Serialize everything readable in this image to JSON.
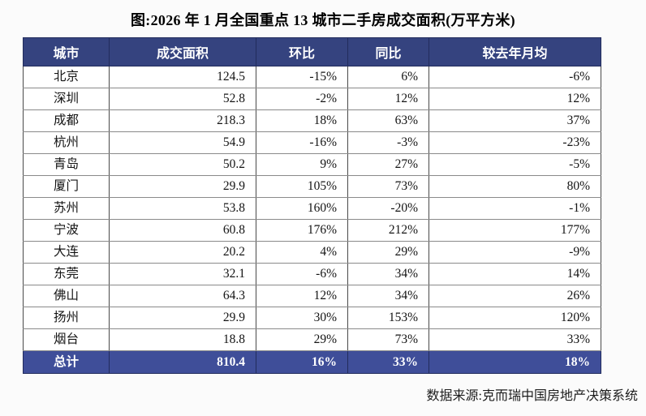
{
  "title": "图:2026 年 1 月全国重点 13 城市二手房成交面积(万平方米)",
  "table": {
    "columns": [
      "城市",
      "成交面积",
      "环比",
      "同比",
      "较去年月均"
    ],
    "rows": [
      [
        "北京",
        "124.5",
        "-15%",
        "6%",
        "-6%"
      ],
      [
        "深圳",
        "52.8",
        "-2%",
        "12%",
        "12%"
      ],
      [
        "成都",
        "218.3",
        "18%",
        "63%",
        "37%"
      ],
      [
        "杭州",
        "54.9",
        "-16%",
        "-3%",
        "-23%"
      ],
      [
        "青岛",
        "50.2",
        "9%",
        "27%",
        "-5%"
      ],
      [
        "厦门",
        "29.9",
        "105%",
        "73%",
        "80%"
      ],
      [
        "苏州",
        "53.8",
        "160%",
        "-20%",
        "-1%"
      ],
      [
        "宁波",
        "60.8",
        "176%",
        "212%",
        "177%"
      ],
      [
        "大连",
        "20.2",
        "4%",
        "29%",
        "-9%"
      ],
      [
        "东莞",
        "32.1",
        "-6%",
        "34%",
        "14%"
      ],
      [
        "佛山",
        "64.3",
        "12%",
        "34%",
        "26%"
      ],
      [
        "扬州",
        "29.9",
        "30%",
        "153%",
        "120%"
      ],
      [
        "烟台",
        "18.8",
        "29%",
        "73%",
        "33%"
      ]
    ],
    "total": [
      "总计",
      "810.4",
      "16%",
      "33%",
      "18%"
    ]
  },
  "footer": {
    "source": "数据来源:克而瑞中国房地产决策系统"
  },
  "colors": {
    "header_bg": "#35437f",
    "total_bg": "#3f4e99"
  }
}
